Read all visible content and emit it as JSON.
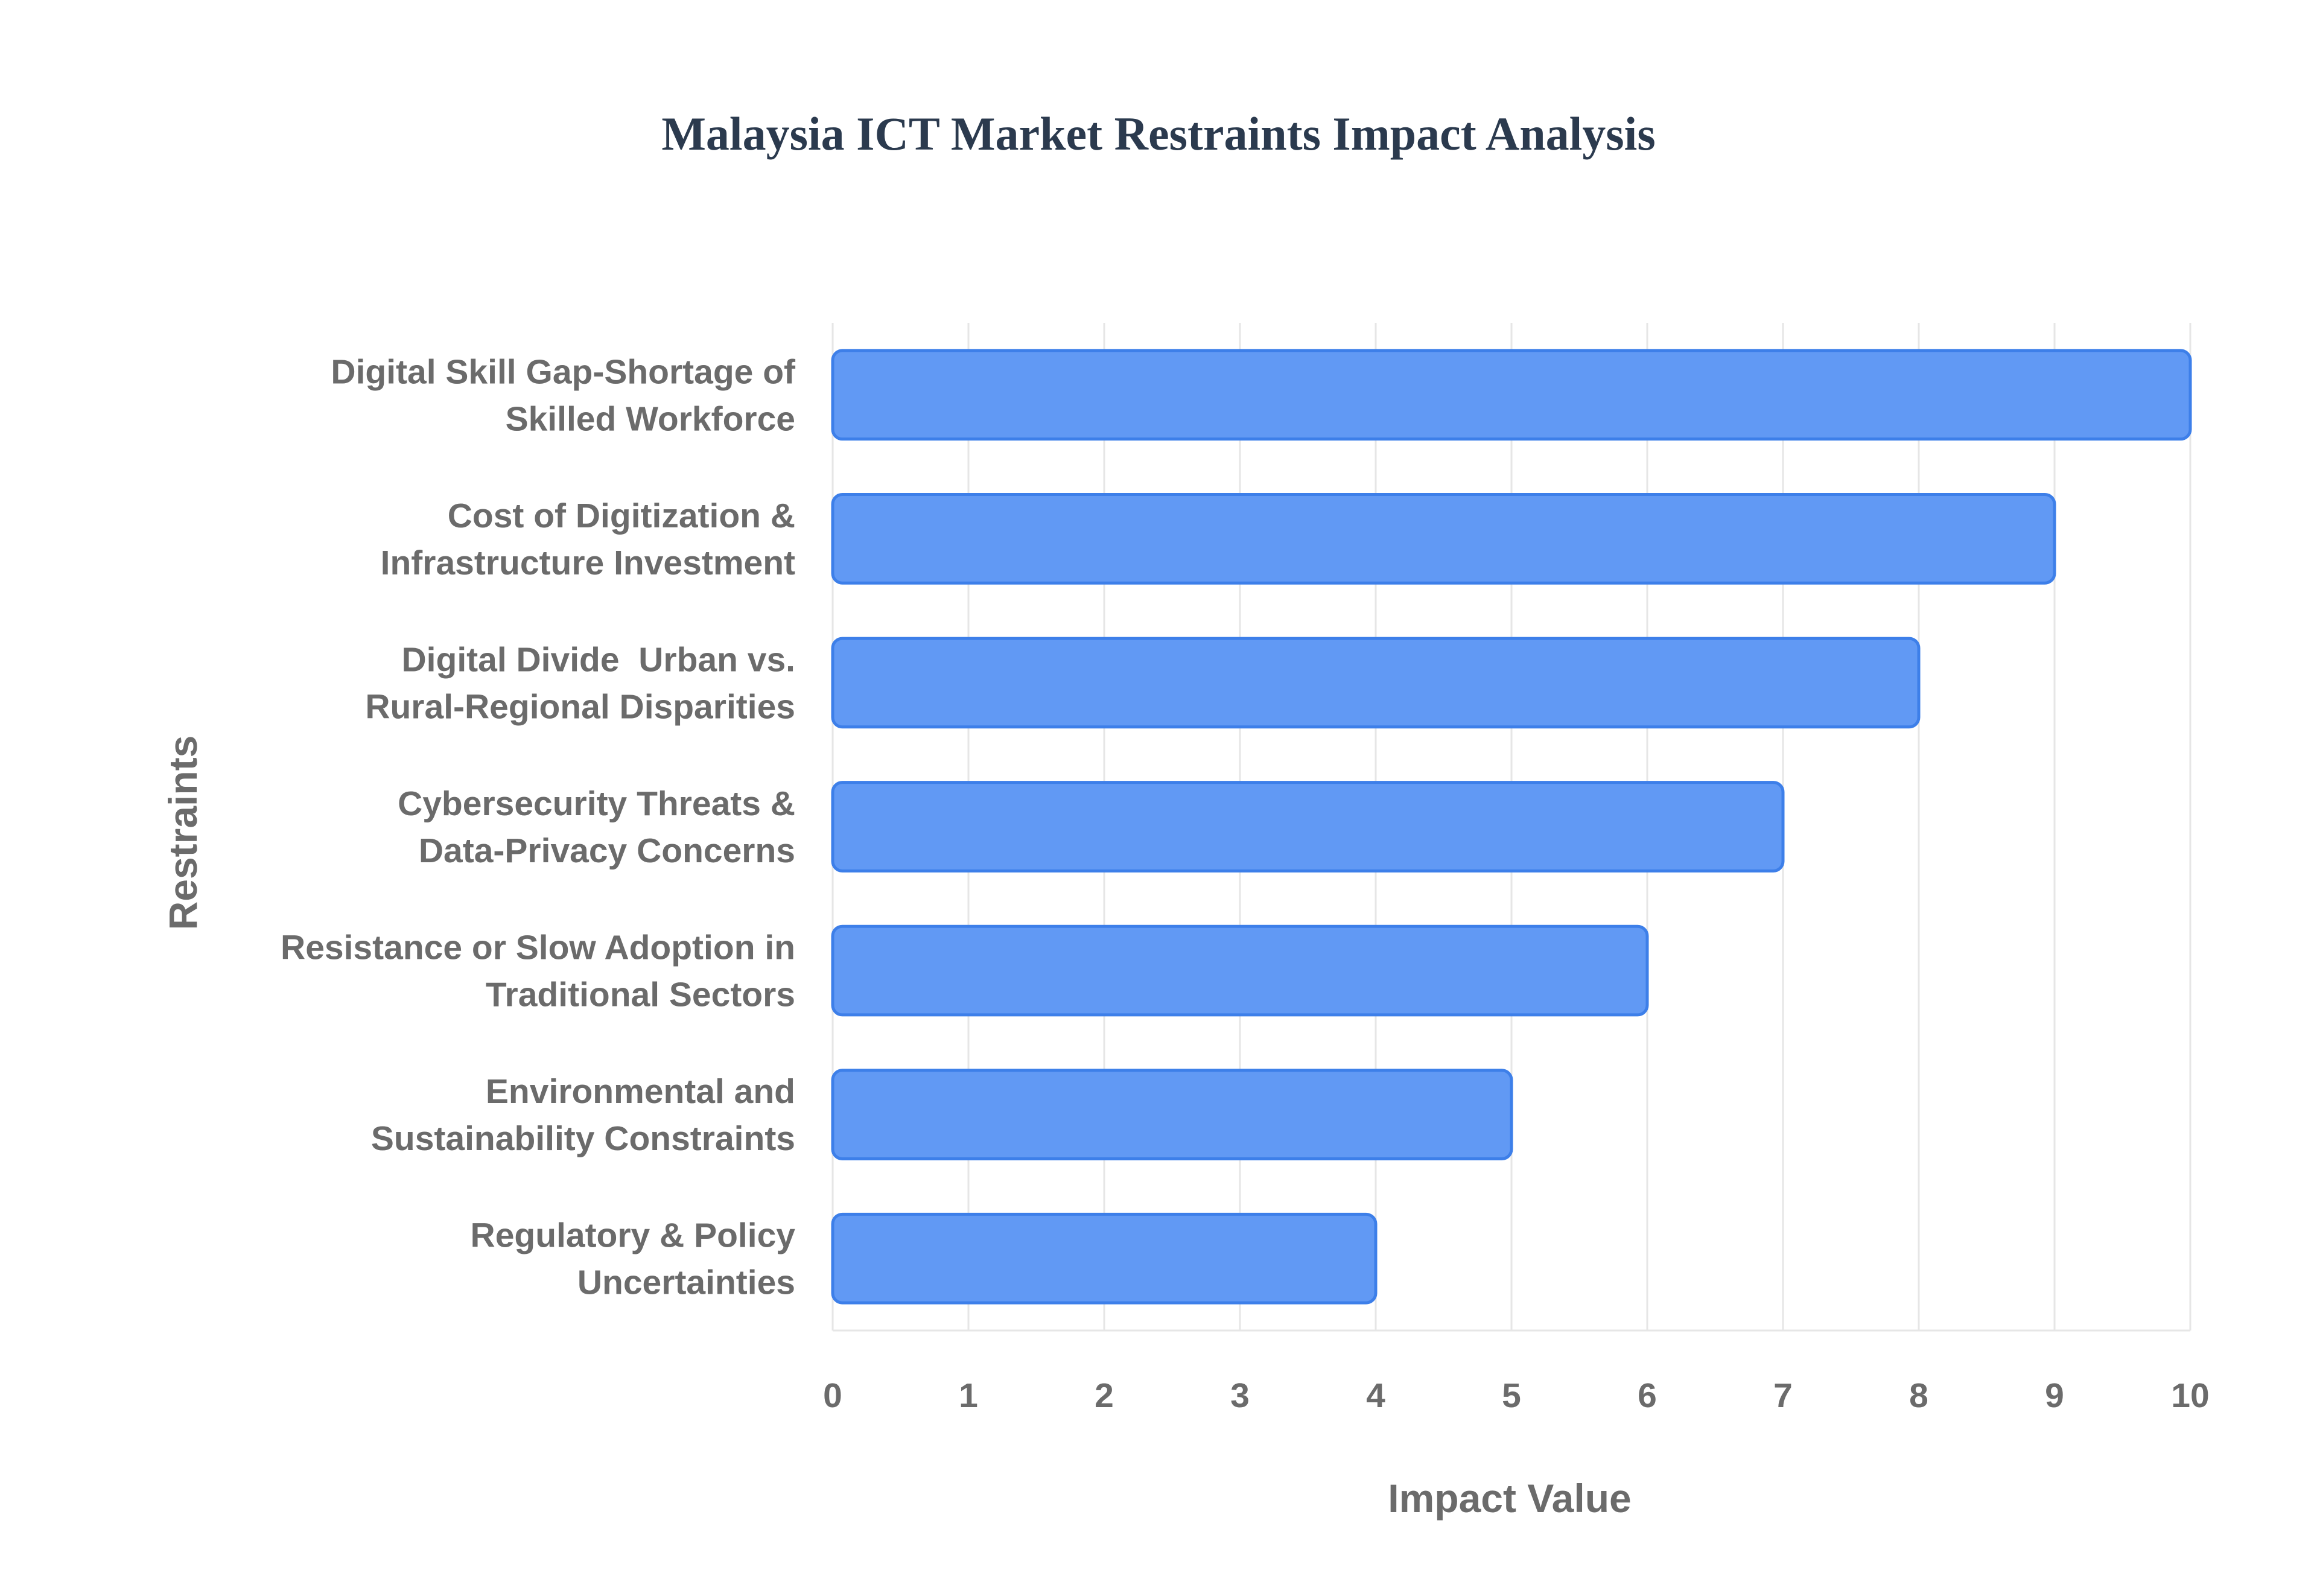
{
  "chart_data": {
    "type": "bar",
    "orientation": "horizontal",
    "title": "Malaysia ICT Market Restraints Impact Analysis",
    "xlabel": "Impact Value",
    "ylabel": "Restraints",
    "xlim": [
      0,
      10
    ],
    "x_ticks": [
      "0",
      "1",
      "2",
      "3",
      "4",
      "5",
      "6",
      "7",
      "8",
      "9",
      "10"
    ],
    "grid": true,
    "legend": "none",
    "bar_color": "#6199f4",
    "bar_border_color": "#3d7fe9",
    "categories": [
      [
        "Digital Skill Gap-Shortage of",
        "Skilled Workforce"
      ],
      [
        "Cost of Digitization &",
        "Infrastructure Investment"
      ],
      [
        "Digital Divide  Urban vs.",
        "Rural-Regional Disparities"
      ],
      [
        "Cybersecurity Threats &",
        "Data-Privacy Concerns"
      ],
      [
        "Resistance or Slow Adoption in",
        "Traditional Sectors"
      ],
      [
        "Environmental and",
        "Sustainability Constraints"
      ],
      [
        "Regulatory & Policy",
        "Uncertainties"
      ]
    ],
    "values": [
      10,
      9,
      8,
      7,
      6,
      5,
      4
    ]
  }
}
